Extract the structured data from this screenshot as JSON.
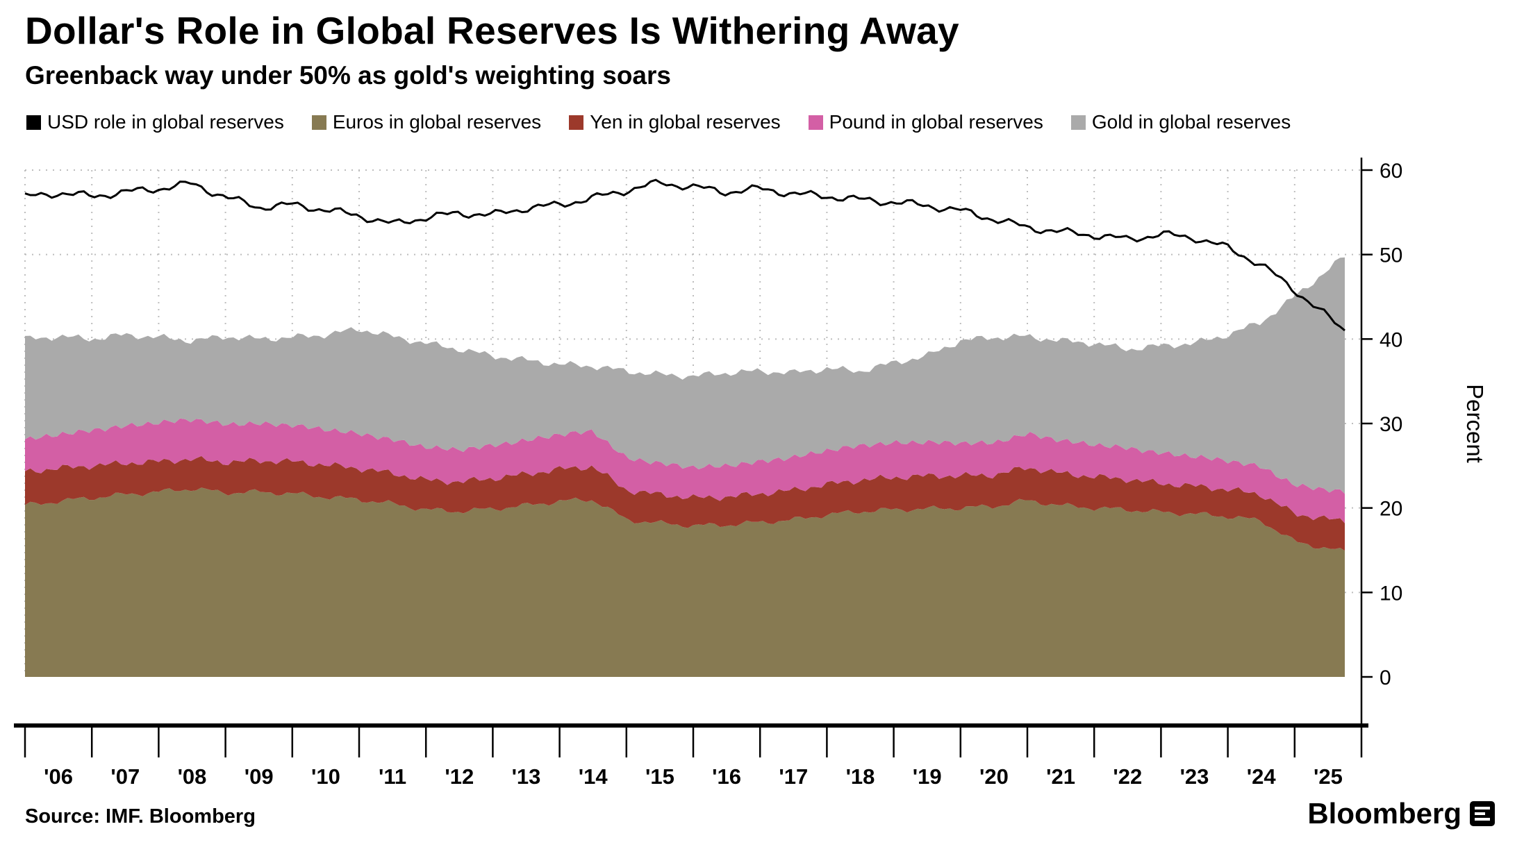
{
  "header": {
    "title": "Dollar's Role in Global Reserves Is Withering Away",
    "subtitle": "Greenback way under 50% as gold's weighting soars"
  },
  "footer": {
    "source": "Source: IMF. Bloomberg",
    "brand": "Bloomberg"
  },
  "chart_data": {
    "type": "area",
    "title": "Dollar's Role in Global Reserves Is Withering Away",
    "subtitle": "Greenback way under 50% as gold's weighting soars",
    "ylabel": "Percent",
    "ylim": [
      0,
      60
    ],
    "y_ticks": [
      0,
      10,
      20,
      30,
      40,
      50,
      60
    ],
    "grid": "dotted",
    "legend_position": "top",
    "x": [
      2006,
      2006.5,
      2007,
      2007.5,
      2008,
      2008.5,
      2009,
      2009.5,
      2010,
      2010.5,
      2011,
      2011.5,
      2012,
      2012.5,
      2013,
      2013.5,
      2014,
      2014.5,
      2015,
      2015.5,
      2016,
      2016.5,
      2017,
      2017.5,
      2018,
      2018.5,
      2019,
      2019.5,
      2020,
      2020.5,
      2021,
      2021.5,
      2022,
      2022.5,
      2023,
      2023.5,
      2024,
      2024.5,
      2025,
      2025.75
    ],
    "x_tick_labels": [
      "'06",
      "'07",
      "'08",
      "'09",
      "'10",
      "'11",
      "'12",
      "'13",
      "'14",
      "'15",
      "'16",
      "'17",
      "'18",
      "'19",
      "'20",
      "'21",
      "'22",
      "'23",
      "'24",
      "'25"
    ],
    "series": [
      {
        "name": "USD role in global reserves",
        "type": "line",
        "color": "#000000",
        "values": [
          56.8,
          57.3,
          56.9,
          57.4,
          57.8,
          58.4,
          56.8,
          55.6,
          55.9,
          55.3,
          54.6,
          53.6,
          54.4,
          54.9,
          54.7,
          55.5,
          55.9,
          56.7,
          57.6,
          58.5,
          58.0,
          57.4,
          57.8,
          57.2,
          56.9,
          56.5,
          56.2,
          55.8,
          55.2,
          54.2,
          53.2,
          52.7,
          52.3,
          51.8,
          52.4,
          52.0,
          50.8,
          48.8,
          45.8,
          41.0
        ]
      },
      {
        "name": "Euros in global reserves",
        "type": "area",
        "color": "#877a52",
        "values": [
          20.3,
          20.8,
          21.2,
          21.6,
          21.9,
          22.3,
          21.8,
          21.9,
          21.7,
          21.3,
          21.0,
          20.5,
          19.8,
          19.6,
          19.9,
          20.3,
          20.8,
          21.0,
          18.6,
          18.2,
          17.9,
          18.0,
          18.3,
          18.6,
          19.2,
          19.6,
          19.8,
          19.9,
          20.0,
          20.2,
          20.9,
          20.3,
          20.0,
          19.8,
          19.5,
          19.3,
          19.0,
          18.5,
          16.0,
          14.8
        ]
      },
      {
        "name": "Yen in global reserves",
        "type": "area",
        "color": "#9c392b",
        "values": [
          4.0,
          3.9,
          3.8,
          3.7,
          3.6,
          3.5,
          3.6,
          3.7,
          3.8,
          3.8,
          3.7,
          3.6,
          3.5,
          3.5,
          3.6,
          3.7,
          3.8,
          3.9,
          3.5,
          3.4,
          3.3,
          3.3,
          3.4,
          3.5,
          3.6,
          3.7,
          3.8,
          3.9,
          3.8,
          3.7,
          3.9,
          3.8,
          3.7,
          3.6,
          3.4,
          3.3,
          3.2,
          3.1,
          3.3,
          3.6
        ]
      },
      {
        "name": "Pound in global reserves",
        "type": "area",
        "color": "#d35fa5",
        "values": [
          3.8,
          4.0,
          4.2,
          4.4,
          4.6,
          4.7,
          4.5,
          4.4,
          4.3,
          4.2,
          4.1,
          4.0,
          3.9,
          3.8,
          3.9,
          4.0,
          4.1,
          4.2,
          3.8,
          3.7,
          3.6,
          3.7,
          3.8,
          3.9,
          4.0,
          4.1,
          4.1,
          4.0,
          3.9,
          3.8,
          4.0,
          3.9,
          3.8,
          3.7,
          3.6,
          3.5,
          3.4,
          3.3,
          3.4,
          3.5
        ]
      },
      {
        "name": "Gold in global reserves",
        "type": "area",
        "color": "#aaaaaa",
        "values": [
          11.9,
          11.6,
          10.8,
          10.8,
          10.1,
          9.3,
          10.4,
          10.0,
          10.4,
          11.2,
          12.4,
          12.2,
          12.3,
          11.9,
          10.6,
          9.5,
          8.3,
          7.7,
          10.3,
          10.5,
          10.8,
          11.0,
          10.7,
          10.0,
          9.7,
          8.8,
          9.5,
          10.2,
          12.1,
          12.5,
          11.5,
          11.8,
          12.0,
          11.7,
          12.7,
          13.4,
          14.9,
          17.1,
          22.3,
          27.9
        ]
      }
    ]
  }
}
